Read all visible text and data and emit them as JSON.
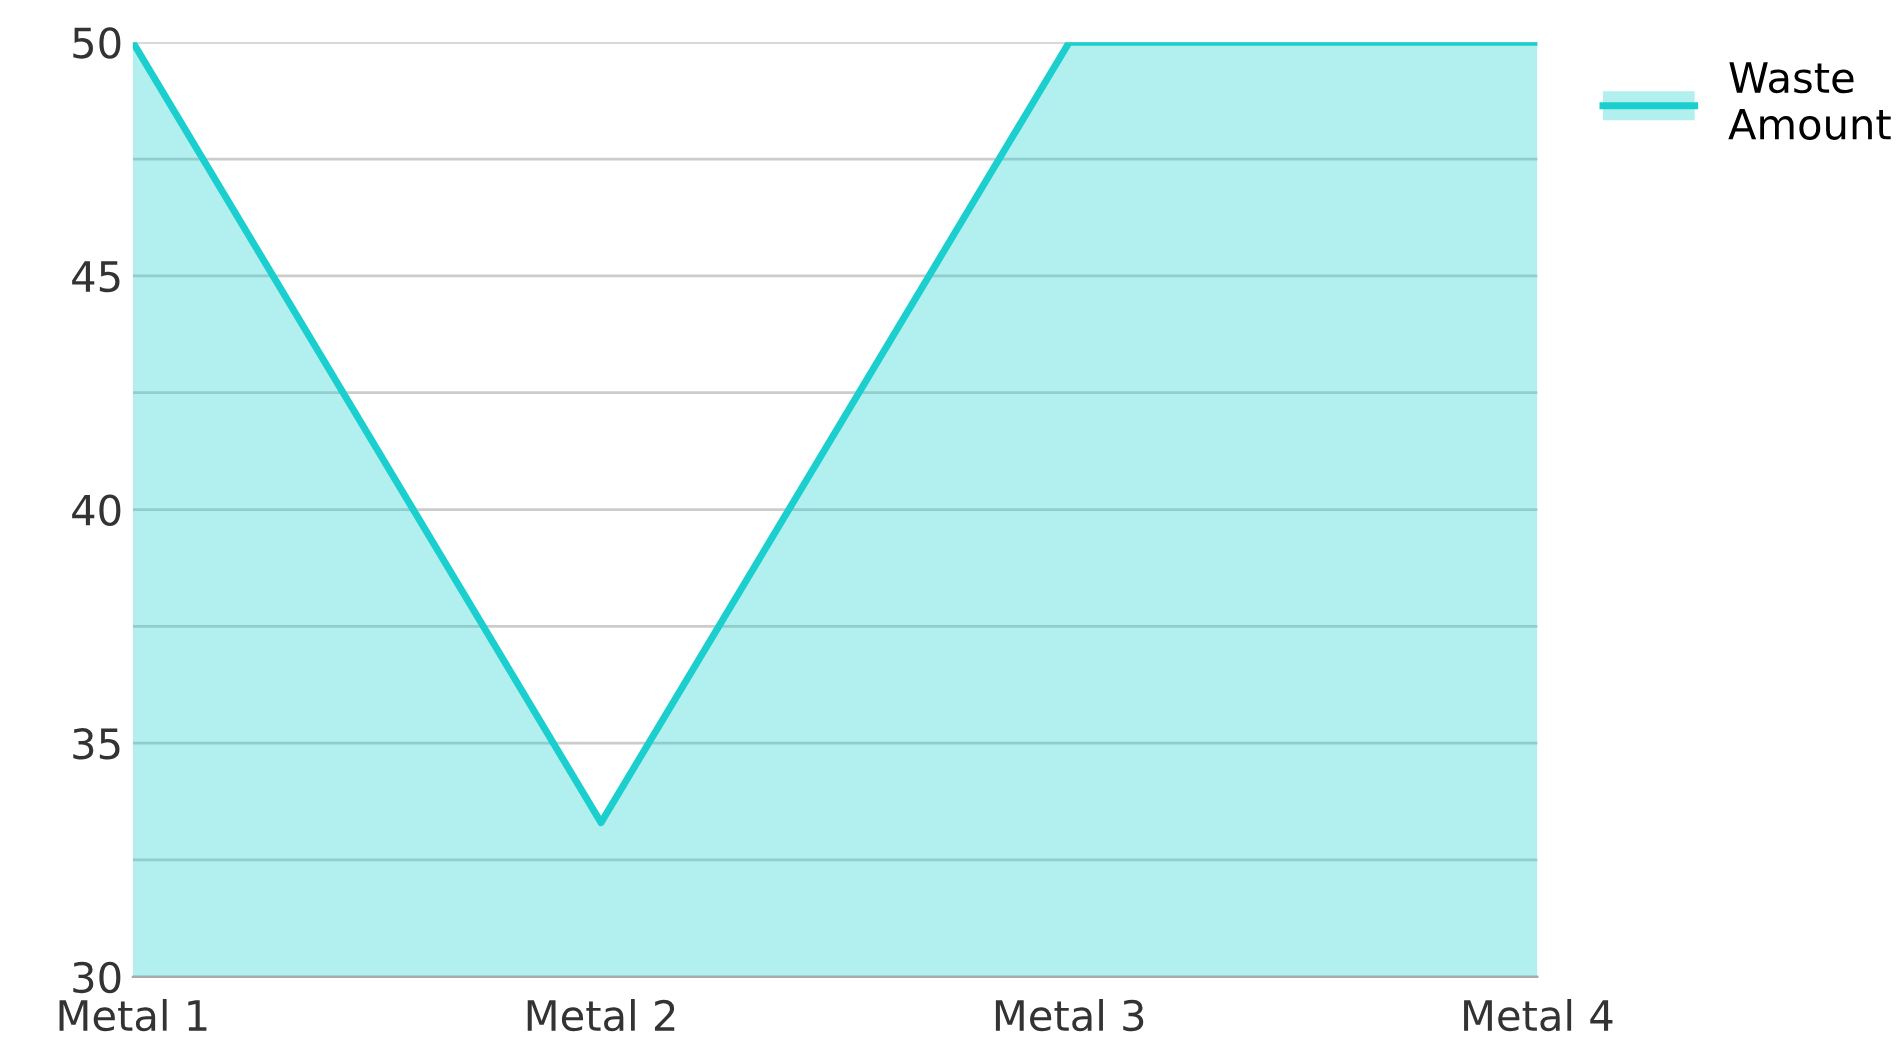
{
  "chart_data": {
    "type": "area",
    "categories": [
      "Metal 1",
      "Metal 2",
      "Metal 3",
      "Metal 4"
    ],
    "series": [
      {
        "name": "Waste Amount",
        "color": "#1ccfcf",
        "values": [
          50,
          33.3,
          50,
          50
        ]
      }
    ],
    "ylim": [
      30,
      50
    ],
    "yticks": [
      30,
      {
        "value": 32.5,
        "label": null
      },
      35,
      {
        "value": 37.5,
        "label": null
      },
      40,
      {
        "value": 42.5,
        "label": null
      },
      45,
      {
        "value": 47.5,
        "label": null
      },
      50
    ],
    "grid": "y",
    "legend": "top right",
    "marker": "none",
    "line_style": "solid"
  }
}
